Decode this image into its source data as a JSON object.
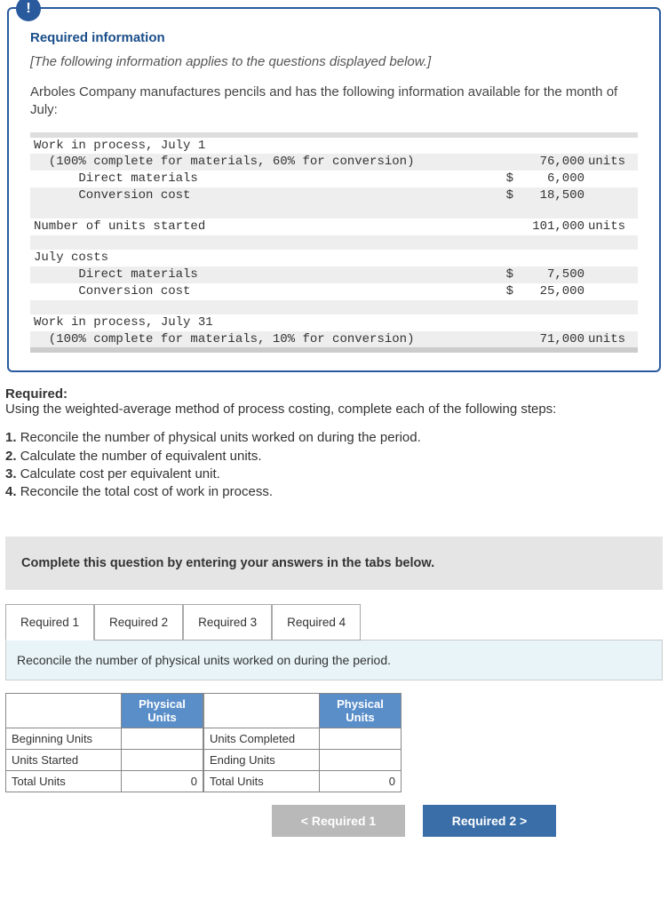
{
  "colors": {
    "info_border": "#2a5a9e",
    "badge_bg": "#2a5a9e",
    "table_header_bg": "#5a8ec9",
    "tab_bg": "#e8f4f8",
    "instruct_bg": "#e5e5e5",
    "nav_disabled": "#b9b9b9",
    "nav_enabled": "#3a6ea8"
  },
  "info": {
    "badge": "!",
    "title": "Required information",
    "subtitle": "[The following information applies to the questions displayed below.]",
    "desc": "Arboles Company manufactures pencils and has the following information available for the month of July:"
  },
  "data_rows": [
    {
      "label": "Work in process, July 1",
      "cur": "",
      "val": "",
      "unit": "",
      "alt": false
    },
    {
      "label": "  (100% complete for materials, 60% for conversion)",
      "cur": "",
      "val": "76,000",
      "unit": "units",
      "alt": true
    },
    {
      "label": "      Direct materials",
      "cur": "$",
      "val": "6,000",
      "unit": "",
      "alt": false
    },
    {
      "label": "      Conversion cost",
      "cur": "$",
      "val": "18,500",
      "unit": "",
      "alt": true
    },
    {
      "sep": true
    },
    {
      "label": "Number of units started",
      "cur": "",
      "val": "101,000",
      "unit": "units",
      "alt": false
    },
    {
      "sep": true
    },
    {
      "label": "July costs",
      "cur": "",
      "val": "",
      "unit": "",
      "alt": false
    },
    {
      "label": "      Direct materials",
      "cur": "$",
      "val": "7,500",
      "unit": "",
      "alt": true
    },
    {
      "label": "      Conversion cost",
      "cur": "$",
      "val": "25,000",
      "unit": "",
      "alt": false
    },
    {
      "sep": true
    },
    {
      "label": "Work in process, July 31",
      "cur": "",
      "val": "",
      "unit": "",
      "alt": false
    },
    {
      "label": "  (100% complete for materials, 10% for conversion)",
      "cur": "",
      "val": "71,000",
      "unit": "units",
      "alt": true
    }
  ],
  "required": {
    "label": "Required:",
    "text": "Using the weighted-average method of process costing, complete each of the following steps:",
    "items": [
      {
        "n": "1.",
        "t": "Reconcile the number of physical units worked on during the period."
      },
      {
        "n": "2.",
        "t": "Calculate the number of equivalent units."
      },
      {
        "n": "3.",
        "t": "Calculate cost per equivalent unit."
      },
      {
        "n": "4.",
        "t": "Reconcile the total cost of work in process."
      }
    ]
  },
  "instruct": "Complete this question by entering your answers in the tabs below.",
  "tabs": [
    {
      "label": "Required 1",
      "active": true
    },
    {
      "label": "Required 2",
      "active": false
    },
    {
      "label": "Required 3",
      "active": false
    },
    {
      "label": "Required 4",
      "active": false
    }
  ],
  "tab_prompt": "Reconcile the number of physical units worked on during the period.",
  "recon": {
    "header": "Physical Units",
    "left": [
      {
        "label": "Beginning Units",
        "val": ""
      },
      {
        "label": "Units Started",
        "val": ""
      },
      {
        "label": "Total Units",
        "val": "0"
      }
    ],
    "right": [
      {
        "label": "Units Completed",
        "val": ""
      },
      {
        "label": "Ending Units",
        "val": ""
      },
      {
        "label": "Total Units",
        "val": "0"
      }
    ]
  },
  "nav": {
    "prev": "<  Required 1",
    "next": "Required 2  >"
  }
}
